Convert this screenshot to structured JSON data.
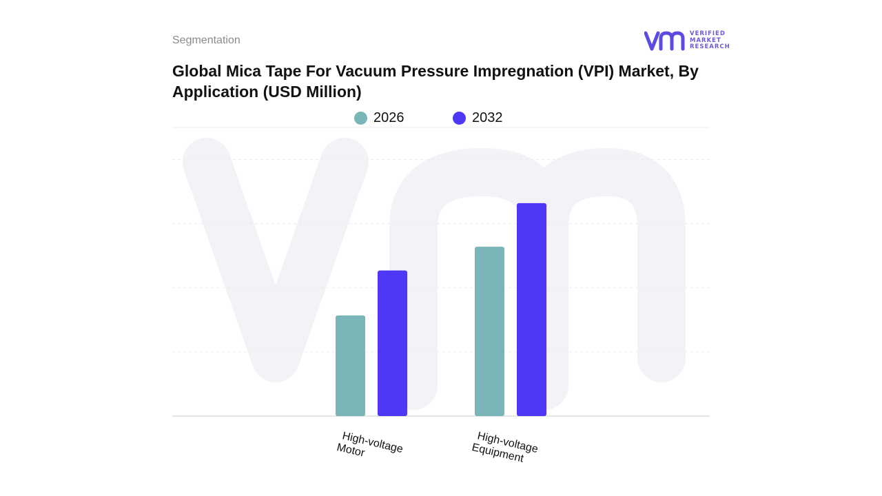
{
  "header": {
    "kicker": "Segmentation",
    "title": "Global Mica Tape For Vacuum Pressure Impregnation (VPI) Market, By Application (USD Million)"
  },
  "logo": {
    "icon": "vmr-logo-icon",
    "lines": [
      "VERIFIED",
      "MARKET",
      "RESEARCH"
    ],
    "brand_color": "#5b4be0"
  },
  "chart_data": {
    "type": "bar",
    "categories": [
      "High-voltage Motor",
      "High-voltage Equipment"
    ],
    "category_lines": [
      [
        "High-voltage",
        "Motor"
      ],
      [
        "High-voltage",
        "Equipment"
      ]
    ],
    "series": [
      {
        "name": "2026",
        "color": "#7ab5b8",
        "values": [
          157,
          264
        ]
      },
      {
        "name": "2032",
        "color": "#4f38f5",
        "values": [
          227,
          332
        ]
      }
    ],
    "ylim": [
      0,
      450
    ],
    "grid": true,
    "legend_position": "top-center",
    "xlabel": "",
    "ylabel": ""
  }
}
